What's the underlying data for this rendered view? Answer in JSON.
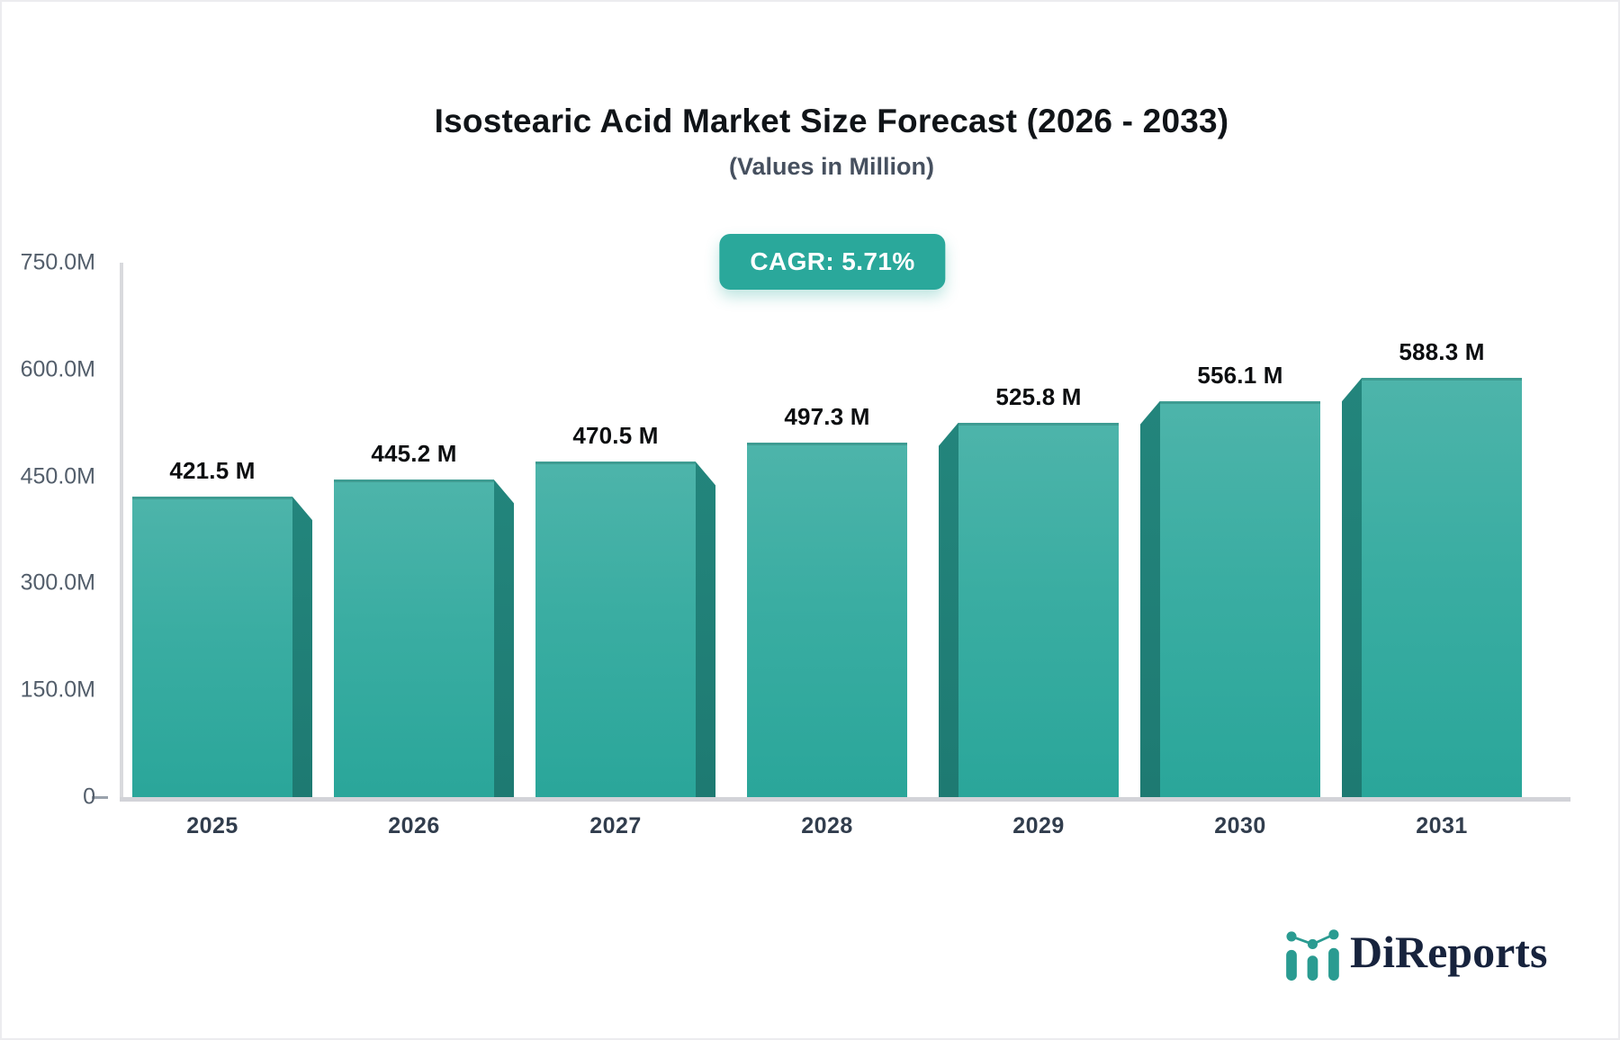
{
  "chart": {
    "title": "Isostearic Acid Market Size Forecast (2026 - 2033)",
    "subtitle": "(Values in Million)",
    "cagr_badge": "CAGR: 5.71%"
  },
  "chart_data": {
    "type": "bar",
    "title": "Isostearic Acid Market Size Forecast (2026 - 2033)",
    "subtitle": "(Values in Million)",
    "annotation": "CAGR: 5.71%",
    "unit": "Million",
    "categories": [
      "2025",
      "2026",
      "2027",
      "2028",
      "2029",
      "2030",
      "2031"
    ],
    "values": [
      421.5,
      445.2,
      470.5,
      497.3,
      525.8,
      556.1,
      588.3
    ],
    "value_labels": [
      "421.5 M",
      "445.2 M",
      "470.5 M",
      "497.3 M",
      "525.8 M",
      "556.1 M",
      "588.3 M"
    ],
    "ylim": [
      0,
      750
    ],
    "y_ticks": [
      {
        "value": 750,
        "label": "750.0M"
      },
      {
        "value": 600,
        "label": "600.0M"
      },
      {
        "value": 450,
        "label": "450.0M"
      },
      {
        "value": 300,
        "label": "300.0M"
      },
      {
        "value": 150,
        "label": "150.0M"
      },
      {
        "value": 0,
        "label": "0"
      }
    ],
    "grid": false,
    "legend": false,
    "bar_color": "#2FA99E",
    "bar_gradient_top": "#4DB4AA",
    "bar_gradient_bottom": "#2AA69A",
    "bar_side_color": "#1F7E75"
  },
  "branding": {
    "logo_text": "DiReports",
    "logo_color": "#17233D",
    "logo_accent": "#2A9B91"
  },
  "colors": {
    "accent": "#2AA89B",
    "axis_line": "#D7D8DC",
    "axis_text": "#535E6B",
    "x_label": "#313D4D",
    "value_label": "#0C0E10",
    "title": "#101418",
    "subtitle": "#46505F"
  }
}
